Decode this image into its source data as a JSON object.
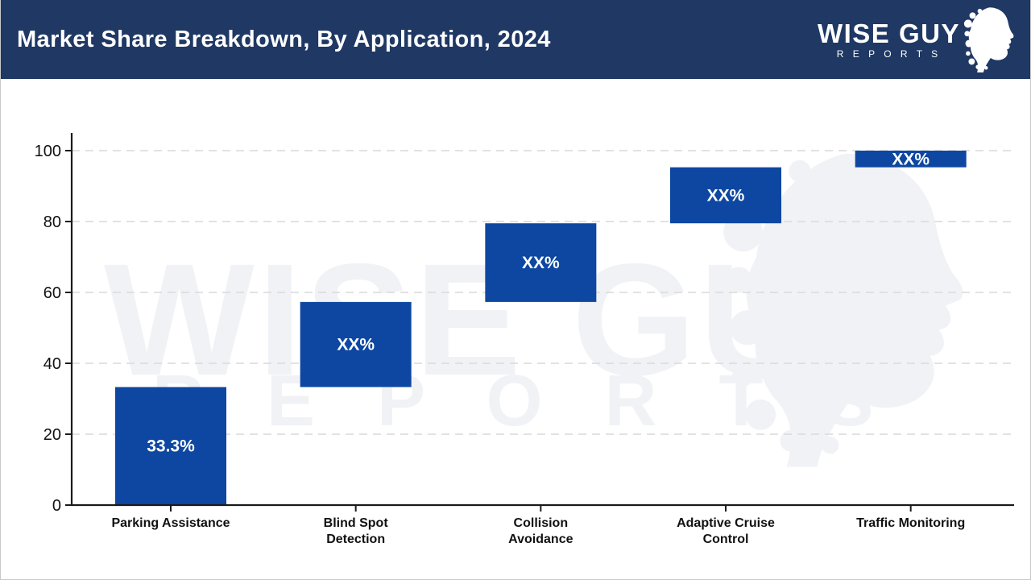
{
  "header": {
    "title": "Market Share Breakdown, By Application, 2024",
    "bg_color": "#1f3864",
    "logo": {
      "wordmark": "WISE GUY",
      "subtitle": "R E P O R T S",
      "icon": "face-profile-dots-icon"
    }
  },
  "watermark": {
    "wordmark": "WISE GUY",
    "subtitle": "R E P O R T S",
    "icon": "face-profile-dots-icon",
    "color": "#f1f2f6"
  },
  "chart_data": {
    "type": "bar",
    "subtype": "waterfall",
    "title": "Market Share Breakdown, By Application, 2024",
    "categories": [
      "Parking Assistance",
      "Blind Spot Detection",
      "Collision Avoidance",
      "Adaptive Cruise Control",
      "Traffic Monitoring"
    ],
    "segments": [
      {
        "category": "Parking Assistance",
        "start": 0,
        "end": 33.3,
        "label": "33.3%"
      },
      {
        "category": "Blind Spot Detection",
        "start": 33.3,
        "end": 57.3,
        "label": "XX%"
      },
      {
        "category": "Collision Avoidance",
        "start": 57.3,
        "end": 79.5,
        "label": "XX%"
      },
      {
        "category": "Adaptive Cruise Control",
        "start": 79.5,
        "end": 95.3,
        "label": "XX%"
      },
      {
        "category": "Traffic Monitoring",
        "start": 95.3,
        "end": 100,
        "label": "XX%"
      }
    ],
    "yticks": [
      0,
      20,
      40,
      60,
      80,
      100
    ],
    "ylim": [
      0,
      105
    ],
    "xlabel": "",
    "ylabel": "",
    "legend": "none",
    "grid": "horizontal-dashed",
    "colors": {
      "bar": "#0d47a1",
      "bar_label": "#ffffff",
      "axis": "#1a1a1a",
      "gridline": "#d9d9d9",
      "tick_label": "#111111"
    }
  }
}
